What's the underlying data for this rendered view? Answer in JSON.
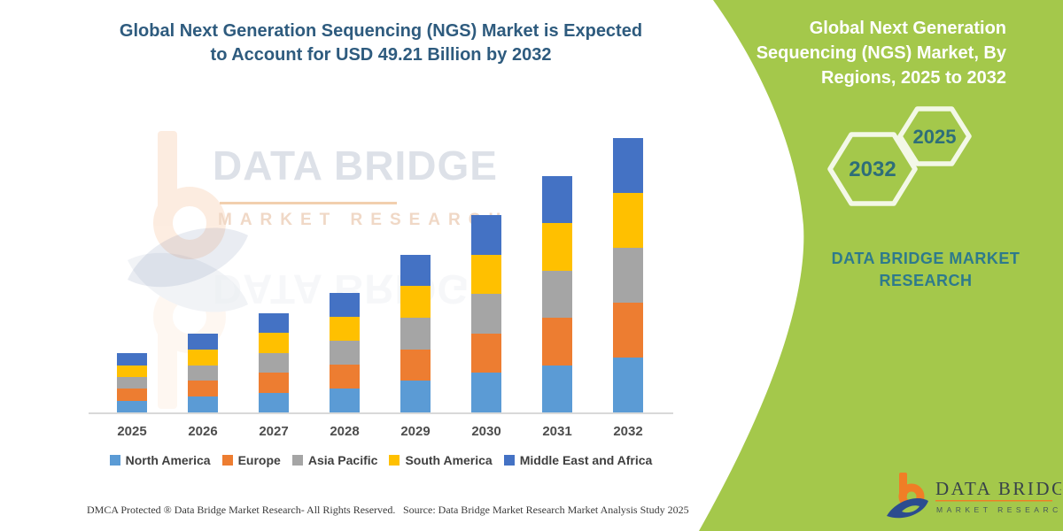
{
  "left": {
    "title_line1": "Global Next Generation Sequencing (NGS) Market is Expected",
    "title_line2": "to Account for USD 49.21 Billion by 2032",
    "footer_dmca": "DMCA Protected ® Data Bridge Market Research-  All Rights Reserved.",
    "footer_source": "Source: Data Bridge Market Research  Market Analysis Study 2025"
  },
  "watermark": {
    "brand": "DATA BRIDGE",
    "sub": "MARKET RESEARCH"
  },
  "chart_data": {
    "type": "bar",
    "stacked": true,
    "title": "Global Next Generation Sequencing (NGS) Market is Expected to Account for USD 49.21 Billion by 2032",
    "unit": "USD Billion",
    "categories": [
      "2025",
      "2026",
      "2027",
      "2028",
      "2029",
      "2030",
      "2031",
      "2032"
    ],
    "totals": [
      10.6,
      14.1,
      17.8,
      21.4,
      28.3,
      35.4,
      42.4,
      49.21
    ],
    "series": [
      {
        "name": "North America",
        "color": "#5B9BD5",
        "values": [
          2.12,
          2.82,
          3.56,
          4.28,
          5.66,
          7.08,
          8.48,
          9.84
        ]
      },
      {
        "name": "Europe",
        "color": "#ED7D31",
        "values": [
          2.12,
          2.82,
          3.56,
          4.28,
          5.66,
          7.08,
          8.48,
          9.84
        ]
      },
      {
        "name": "Asia Pacific",
        "color": "#A5A5A5",
        "values": [
          2.12,
          2.82,
          3.56,
          4.28,
          5.66,
          7.08,
          8.48,
          9.84
        ]
      },
      {
        "name": "South America",
        "color": "#FFC000",
        "values": [
          2.12,
          2.82,
          3.56,
          4.28,
          5.66,
          7.08,
          8.48,
          9.84
        ]
      },
      {
        "name": "Middle East and Africa",
        "color": "#4472C4",
        "values": [
          2.12,
          2.82,
          3.56,
          4.28,
          5.66,
          7.08,
          8.48,
          9.84
        ]
      }
    ],
    "legend_position": "bottom",
    "grid": false,
    "y_axis_visible": false,
    "ylim": [
      0,
      52
    ],
    "values_estimated_from_pixels": true
  },
  "right_panel": {
    "bg_color": "#A4C84B",
    "title_line1": "Global Next Generation",
    "title_line2": "Sequencing (NGS) Market, By",
    "title_line3": "Regions, 2025 to 2032",
    "hexagons": [
      {
        "label": "2032"
      },
      {
        "label": "2025"
      }
    ],
    "brand_line1": "DATA BRIDGE MARKET",
    "brand_line2": "RESEARCH",
    "logo": {
      "brand": "DATA BRIDGE",
      "sub": "MARKET  RESEARCH",
      "orange": "#F07E26",
      "blue": "#2B4C8F"
    }
  }
}
